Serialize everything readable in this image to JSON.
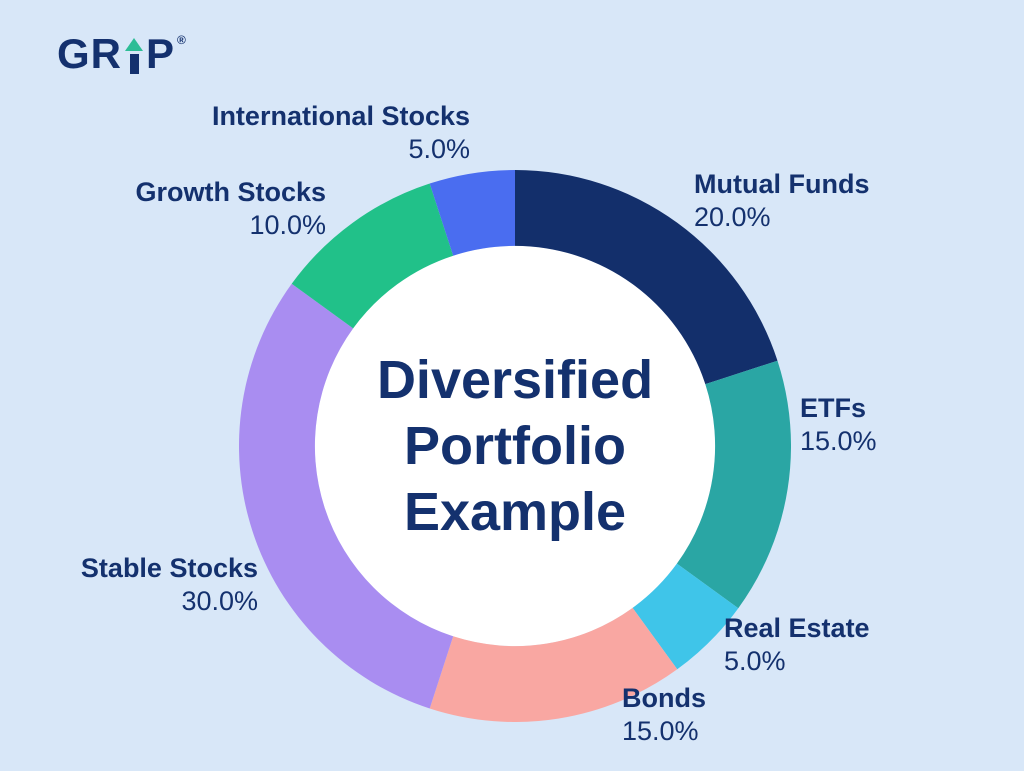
{
  "logo": {
    "part1": "GR",
    "part2": "P",
    "reg": "®"
  },
  "chart_data": {
    "type": "pie",
    "variant": "donut",
    "title": "Diversified Portfolio Example",
    "title_lines": [
      "Diversified",
      "Portfolio",
      "Example"
    ],
    "labels": [
      "Mutual Funds",
      "ETFs",
      "Real Estate",
      "Bonds",
      "Stable Stocks",
      "Growth Stocks",
      "International Stocks"
    ],
    "values": [
      20.0,
      15.0,
      5.0,
      15.0,
      30.0,
      10.0,
      5.0
    ],
    "value_labels": [
      "20.0%",
      "15.0%",
      "5.0%",
      "15.0%",
      "30.0%",
      "10.0%",
      "5.0%"
    ],
    "colors": [
      "#132f6b",
      "#2aa6a4",
      "#3fc5e9",
      "#f9a7a2",
      "#a98df1",
      "#21c189",
      "#4a6df0"
    ],
    "start_angle_deg": 0,
    "direction": "clockwise",
    "donut_hole_ratio": 0.725,
    "hole_color": "#ffffff",
    "background_color": "#d8e7f8",
    "text_color": "#14316e",
    "legend_position": "around",
    "total": 100
  }
}
